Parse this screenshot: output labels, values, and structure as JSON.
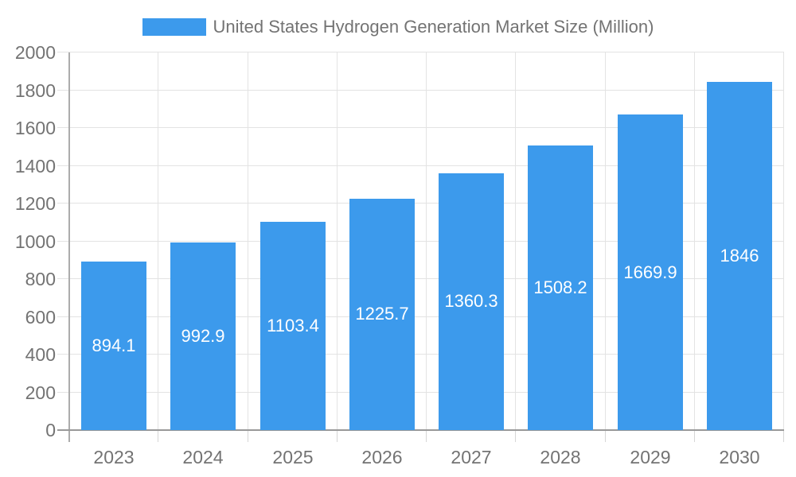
{
  "legend": {
    "label": "United States Hydrogen Generation Market Size (Million)"
  },
  "chart_data": {
    "type": "bar",
    "title": "United States Hydrogen Generation Market Size (Million)",
    "categories": [
      "2023",
      "2024",
      "2025",
      "2026",
      "2027",
      "2028",
      "2029",
      "2030"
    ],
    "series": [
      {
        "name": "United States Hydrogen Generation Market Size (Million)",
        "values": [
          894.1,
          992.9,
          1103.4,
          1225.7,
          1360.3,
          1508.2,
          1669.9,
          1846
        ]
      }
    ],
    "bar_value_labels": [
      "894.1",
      "992.9",
      "1103.4",
      "1225.7",
      "1360.3",
      "1508.2",
      "1669.9",
      "1846"
    ],
    "xlabel": "",
    "ylabel": "",
    "ylim": [
      0,
      2000
    ],
    "ytick_step": 200,
    "ytick_labels": [
      "0",
      "200",
      "400",
      "600",
      "800",
      "1000",
      "1200",
      "1400",
      "1600",
      "1800",
      "2000"
    ],
    "grid": true,
    "legend_position": "top",
    "value_label_position": "inside-center"
  },
  "colors": {
    "bar": "#3C9AEC",
    "bar_label_text": "#FFFFFF",
    "axis_text": "#737373",
    "x_axis_line": "#999999",
    "y_axis_line": "#ACACAC",
    "gridline": "#E3E3E3",
    "tick": "#D6D6D6",
    "background": "#FFFFFF"
  }
}
